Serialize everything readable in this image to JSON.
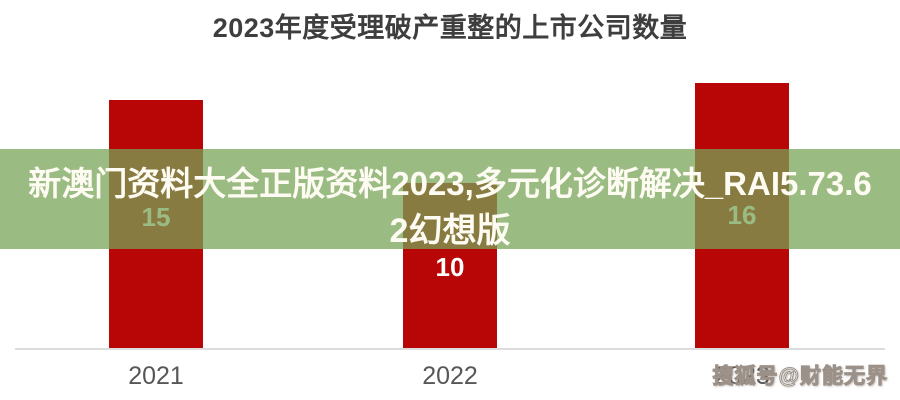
{
  "title": "2023年度受理破产重整的上市公司数量",
  "banner": {
    "line1": "新澳门资料大全正版资料2023,多元化诊断解决_RAI5.73.6",
    "line2": "2幻想版",
    "overlay_color": "rgba(119,165,87,0.74)",
    "text_color": "#fdfbf2"
  },
  "watermark": "搜狐号@财能无界",
  "chart_data": {
    "type": "bar",
    "title": "2023年度受理破产重整的上市公司数量",
    "categories": [
      "2021",
      "2022",
      "2023"
    ],
    "values": [
      15,
      10,
      16
    ],
    "xlabel": "",
    "ylabel": "",
    "ylim": [
      0,
      18
    ],
    "grid": false,
    "legend": false,
    "value_labels_inside_bars": true,
    "bar_color": "#b80606",
    "label_color": "#ffffff",
    "axis_label_color": "#575757",
    "title_color": "#3e3e3e",
    "baseline_color": "#dcdcdc"
  }
}
